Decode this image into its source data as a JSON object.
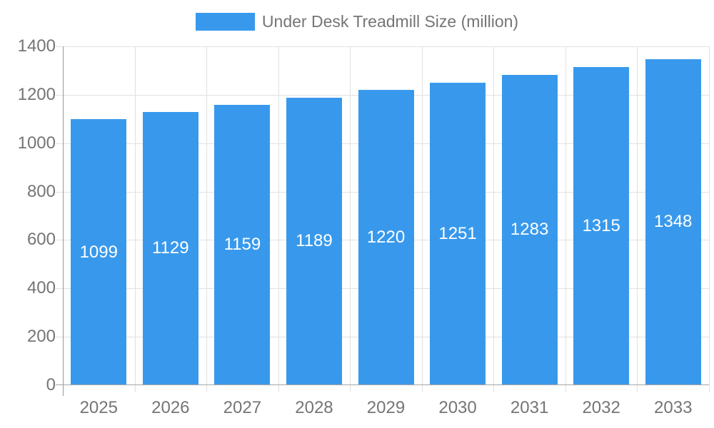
{
  "chart_data": {
    "type": "bar",
    "title": "",
    "legend": {
      "position": "top-center",
      "entries": [
        {
          "label": "Under Desk Treadmill Size (million)",
          "color": "#3899EC"
        }
      ]
    },
    "categories": [
      "2025",
      "2026",
      "2027",
      "2028",
      "2029",
      "2030",
      "2031",
      "2032",
      "2033"
    ],
    "series": [
      {
        "name": "Under Desk Treadmill Size (million)",
        "values": [
          1099,
          1129,
          1159,
          1189,
          1220,
          1251,
          1283,
          1315,
          1348
        ]
      }
    ],
    "xlabel": "",
    "ylabel": "",
    "ylim": [
      0,
      1400
    ],
    "ytick_step": 200,
    "yticks": [
      0,
      200,
      400,
      600,
      800,
      1000,
      1200,
      1400
    ],
    "grid": true,
    "bar_labels_inside": true,
    "colors": {
      "bar": "#3899EC",
      "bar_label_text": "#ffffff",
      "axis_text": "#757575",
      "gridline": "#e1e1e1",
      "axis_line": "#999999"
    }
  }
}
